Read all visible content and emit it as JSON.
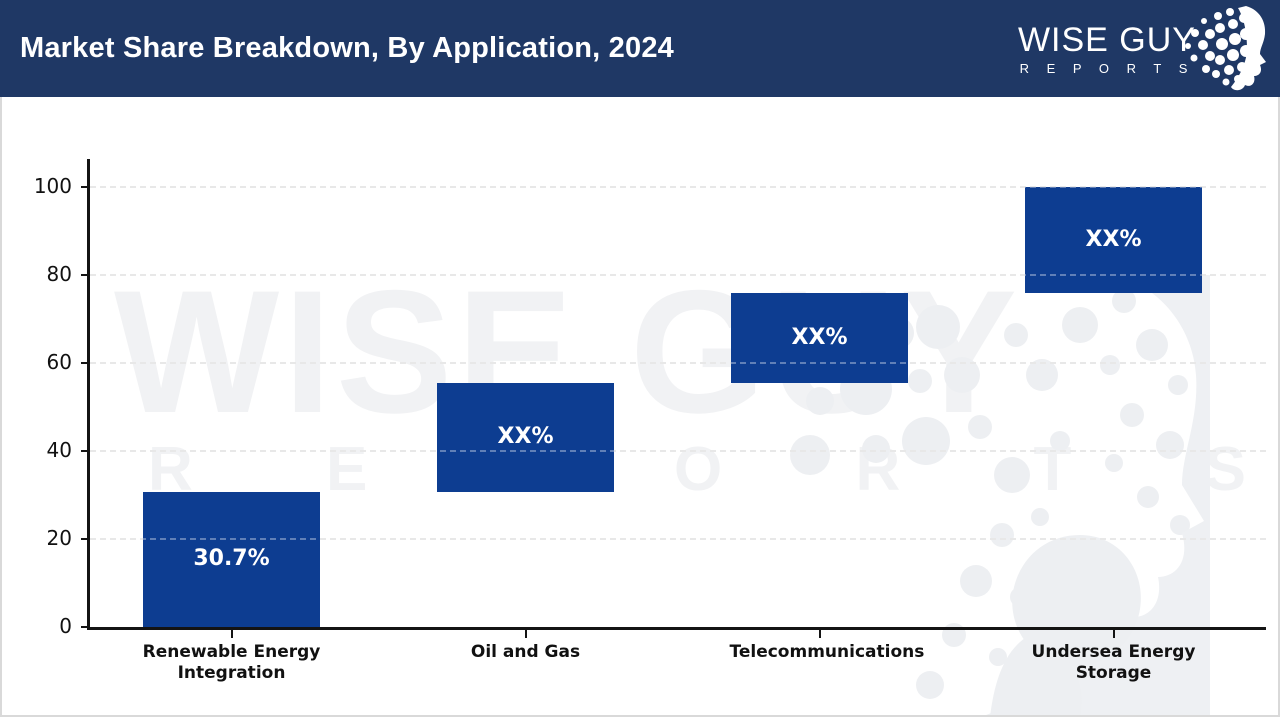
{
  "header": {
    "title": "Market Share Breakdown, By Application, 2024",
    "logo": {
      "line1": "WISE GUY",
      "line2": "R E P O R T S"
    }
  },
  "watermark": {
    "line1": "WISE GUY",
    "line2": "R E P O R T S"
  },
  "colors": {
    "header_bg": "#1f3865",
    "bar": "#0d3d91",
    "bar_label": "#ffffff",
    "axis": "#141414",
    "gridline": "#dcdcdc",
    "watermark": "#f1f2f4",
    "frame_border": "#d9d9d9"
  },
  "chart_data": {
    "type": "bar",
    "subtype": "waterfall-stepped",
    "title": "Market Share Breakdown, By Application, 2024",
    "categories": [
      "Renewable Energy Integration",
      "Oil and Gas",
      "Telecommunications",
      "Undersea Energy Storage"
    ],
    "segments": [
      {
        "category": "Renewable Energy Integration",
        "start": 0,
        "end": 30.7,
        "label": "30.7%"
      },
      {
        "category": "Oil and Gas",
        "start": 30.7,
        "end": 55.5,
        "label": "XX%"
      },
      {
        "category": "Telecommunications",
        "start": 55.5,
        "end": 75.9,
        "label": "XX%"
      },
      {
        "category": "Undersea Energy Storage",
        "start": 75.9,
        "end": 100,
        "label": "XX%"
      }
    ],
    "xlabel": "",
    "ylabel": "",
    "ylim": [
      0,
      100
    ],
    "yticks": [
      0,
      20,
      40,
      60,
      80,
      100
    ],
    "grid": "horizontal-dashed",
    "legend": "none"
  }
}
